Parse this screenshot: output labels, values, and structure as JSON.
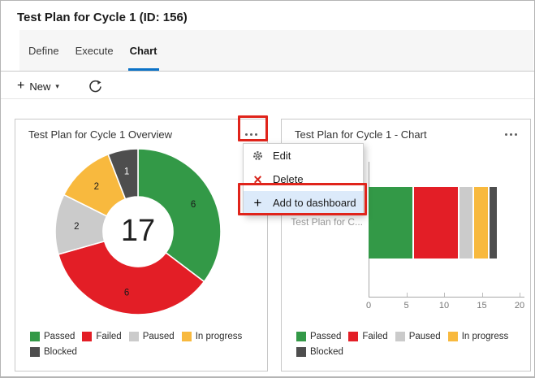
{
  "window": {
    "title": "Test Plan for Cycle 1 (ID: 156)"
  },
  "tabs": {
    "items": [
      {
        "label": "Define",
        "active": false
      },
      {
        "label": "Execute",
        "active": false
      },
      {
        "label": "Chart",
        "active": true
      }
    ]
  },
  "toolbar": {
    "new_button": {
      "label": "New"
    },
    "refresh_button": {
      "icon": "refresh-icon"
    }
  },
  "cards": [
    {
      "title": "Test Plan for Cycle 1 Overview",
      "more_icon": "ellipsis-icon"
    },
    {
      "title": "Test Plan for Cycle 1 - Chart",
      "more_icon": "ellipsis-icon"
    }
  ],
  "context_menu": {
    "items": [
      {
        "label": "Edit",
        "icon": "gear-icon",
        "highlighted": false
      },
      {
        "label": "Delete",
        "icon": "delete-x-icon",
        "highlighted": false
      },
      {
        "label": "Add to dashboard",
        "icon": "plus-icon",
        "highlighted": true
      }
    ]
  },
  "annotations": {
    "highlight_color": "#e0241b",
    "targets": [
      "overview-more-button",
      "menu-item-add-to-dashboard"
    ]
  },
  "colors": {
    "accent": "#0b72c7",
    "passed": "#339947",
    "failed": "#E31E26",
    "paused": "#CBCBCB",
    "in_progress": "#F8B93E",
    "blocked": "#4E4E4E"
  },
  "chart_data": [
    {
      "type": "pie",
      "subtype": "donut",
      "title": "Test Plan for Cycle 1 Overview",
      "center_total": "17",
      "start_angle_deg": 0,
      "direction": "clockwise",
      "legend_position": "bottom",
      "series": [
        {
          "name": "Passed",
          "value": 6,
          "color": "#339947",
          "label_color": "#1a1a1a"
        },
        {
          "name": "Failed",
          "value": 6,
          "color": "#E31E26",
          "label_color": "#1a1a1a"
        },
        {
          "name": "Paused",
          "value": 2,
          "color": "#CBCBCB",
          "label_color": "#1a1a1a"
        },
        {
          "name": "In progress",
          "value": 2,
          "color": "#F8B93E",
          "label_color": "#1a1a1a"
        },
        {
          "name": "Blocked",
          "value": 1,
          "color": "#4E4E4E",
          "label_color": "#ffffff"
        }
      ]
    },
    {
      "type": "bar",
      "subtype": "horizontal-stacked",
      "title": "Test Plan for Cycle 1 - Chart",
      "categories": [
        "Test Plan for C..."
      ],
      "xlim": [
        0,
        20
      ],
      "xticks": [
        0,
        5,
        10,
        15,
        20
      ],
      "grid": false,
      "legend_position": "bottom",
      "series": [
        {
          "name": "Passed",
          "value": 6,
          "color": "#339947"
        },
        {
          "name": "Failed",
          "value": 6,
          "color": "#E31E26"
        },
        {
          "name": "Paused",
          "value": 2,
          "color": "#CBCBCB"
        },
        {
          "name": "In progress",
          "value": 2,
          "color": "#F8B93E"
        },
        {
          "name": "Blocked",
          "value": 1,
          "color": "#4E4E4E"
        }
      ]
    }
  ]
}
